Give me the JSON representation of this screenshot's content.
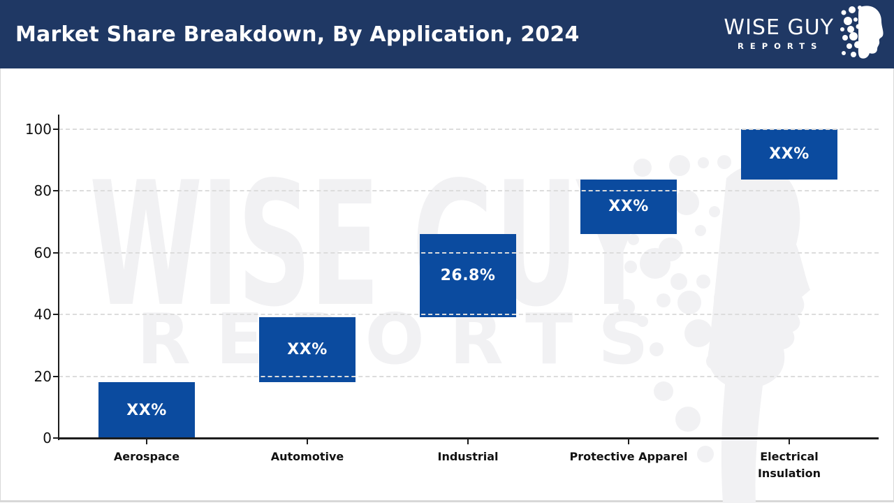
{
  "header": {
    "title": "Market Share Breakdown, By Application, 2024",
    "logo": {
      "primary": "WISE GUY",
      "secondary": "REPORTS"
    },
    "bg_color": "#1f3864"
  },
  "watermark": {
    "line1": "WISE GUY",
    "line2": "REPORTS"
  },
  "chart_data": {
    "type": "bar",
    "variant": "floating-waterfall",
    "title": "Market Share Breakdown, By Application, 2024",
    "categories": [
      "Aerospace",
      "Automotive",
      "Industrial",
      "Protective Apparel",
      "Electrical\nInsulation"
    ],
    "segments": [
      {
        "category": "Aerospace",
        "start": 0,
        "end": 18,
        "label": "XX%"
      },
      {
        "category": "Automotive",
        "start": 18,
        "end": 39.2,
        "label": "XX%"
      },
      {
        "category": "Industrial",
        "start": 39.2,
        "end": 66,
        "label": "26.8%"
      },
      {
        "category": "Protective Apparel",
        "start": 66,
        "end": 83.8,
        "label": "XX%"
      },
      {
        "category": "Electrical Insulation",
        "start": 83.8,
        "end": 100,
        "label": "XX%"
      }
    ],
    "ylim": [
      0,
      104
    ],
    "yticks": [
      0,
      20,
      40,
      60,
      80,
      100
    ],
    "xlabel": "",
    "ylabel": "",
    "bar_color": "#0b4b9f",
    "bar_label_color": "#ffffff",
    "axis_color": "#1c1c1c",
    "grid": "horizontal-dashed",
    "grid_color": "#dcdcdc",
    "legend": "none"
  }
}
